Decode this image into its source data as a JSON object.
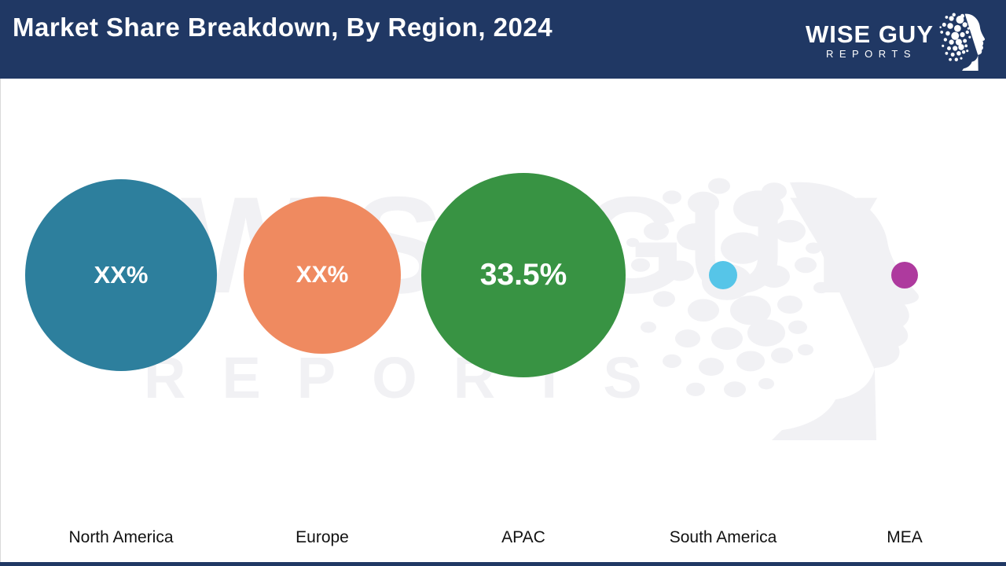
{
  "header": {
    "title": "Market Share Breakdown, By Region, 2024",
    "bg_color": "#203864",
    "logo": {
      "line1": "WISE GUY",
      "line2": "REPORTS"
    }
  },
  "watermark": {
    "wordmark": "WISE GUY",
    "reports": "REPORTS",
    "color": "#f1f1f4"
  },
  "chart_data": {
    "type": "bubble",
    "title": "Market Share Breakdown, By Region, 2024",
    "categories": [
      "North America",
      "Europe",
      "APAC",
      "South America",
      "MEA"
    ],
    "series": [
      {
        "name": "Market Share",
        "points": [
          {
            "label": "North America",
            "value_label": "XX%",
            "share_pct": null,
            "color": "#2d7f9d",
            "radius_px": 122
          },
          {
            "label": "Europe",
            "value_label": "XX%",
            "share_pct": null,
            "color": "#ef8a60",
            "radius_px": 100
          },
          {
            "label": "APAC",
            "value_label": "33.5%",
            "share_pct": 33.5,
            "color": "#389343",
            "radius_px": 130
          },
          {
            "label": "South America",
            "value_label": "",
            "share_pct": null,
            "color": "#56c5e8",
            "radius_px": 18
          },
          {
            "label": "MEA",
            "value_label": "",
            "share_pct": null,
            "color": "#ae3a9e",
            "radius_px": 17
          }
        ]
      }
    ],
    "legend": false,
    "grid": false,
    "xlabel": "",
    "ylabel": ""
  }
}
